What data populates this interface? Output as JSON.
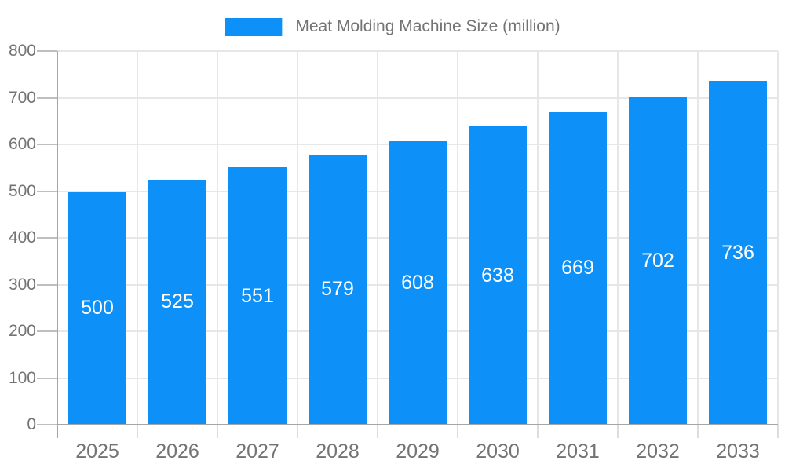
{
  "chart_data": {
    "type": "bar",
    "title": "Meat Molding Machine Size (million)",
    "categories": [
      "2025",
      "2026",
      "2027",
      "2028",
      "2029",
      "2030",
      "2031",
      "2032",
      "2033"
    ],
    "values": [
      500,
      525,
      551,
      579,
      608,
      638,
      669,
      702,
      736
    ],
    "xlabel": "",
    "ylabel": "",
    "ylim": [
      0,
      800
    ],
    "yticks": [
      0,
      100,
      200,
      300,
      400,
      500,
      600,
      700,
      800
    ],
    "grid": true,
    "legend_position": "top-center",
    "value_labels": "centered-inside-bars-white",
    "colors": {
      "bar": "#0D90F8",
      "value_label_text": "#FFFFFF",
      "axis_text": "#737373",
      "axis_line": "#A6A6A6",
      "gridline": "#E7E7E7",
      "y_tick": "#BFBFBF",
      "x_tick": "#DDDDDD",
      "background": "#FFFFFF"
    }
  }
}
